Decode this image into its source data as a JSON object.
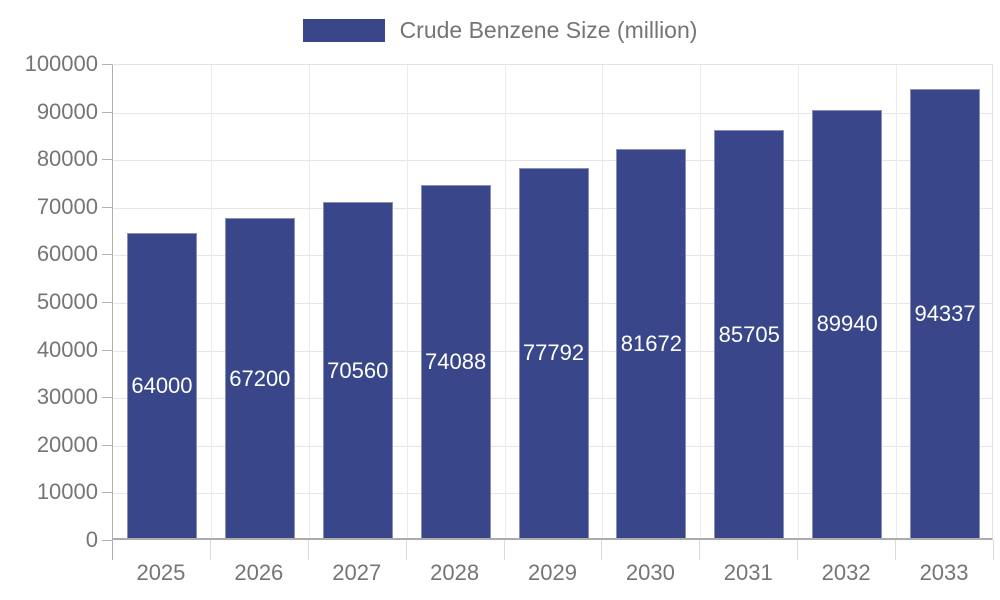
{
  "legend": {
    "label": "Crude Benzene Size (million)"
  },
  "colors": {
    "bar": "#39478A",
    "axis_text": "#757575",
    "bar_label_text": "#ffffff",
    "gridline": "#e6e6e6",
    "axis_line": "#acacac"
  },
  "chart_data": {
    "type": "bar",
    "title": "Crude Benzene Size (million)",
    "series_name": "Crude Benzene Size (million)",
    "categories": [
      "2025",
      "2026",
      "2027",
      "2028",
      "2029",
      "2030",
      "2031",
      "2032",
      "2033"
    ],
    "values": [
      64000,
      67200,
      70560,
      74088,
      77792,
      81672,
      85705,
      89940,
      94337
    ],
    "xlabel": "",
    "ylabel": "",
    "ylim": [
      0,
      100000
    ],
    "ytick_step": 10000,
    "ytick_labels": [
      "0",
      "10000",
      "20000",
      "30000",
      "40000",
      "50000",
      "60000",
      "70000",
      "80000",
      "90000",
      "100000"
    ],
    "grid": true,
    "legend_position": "top",
    "bar_labels_position": "center-inside"
  }
}
